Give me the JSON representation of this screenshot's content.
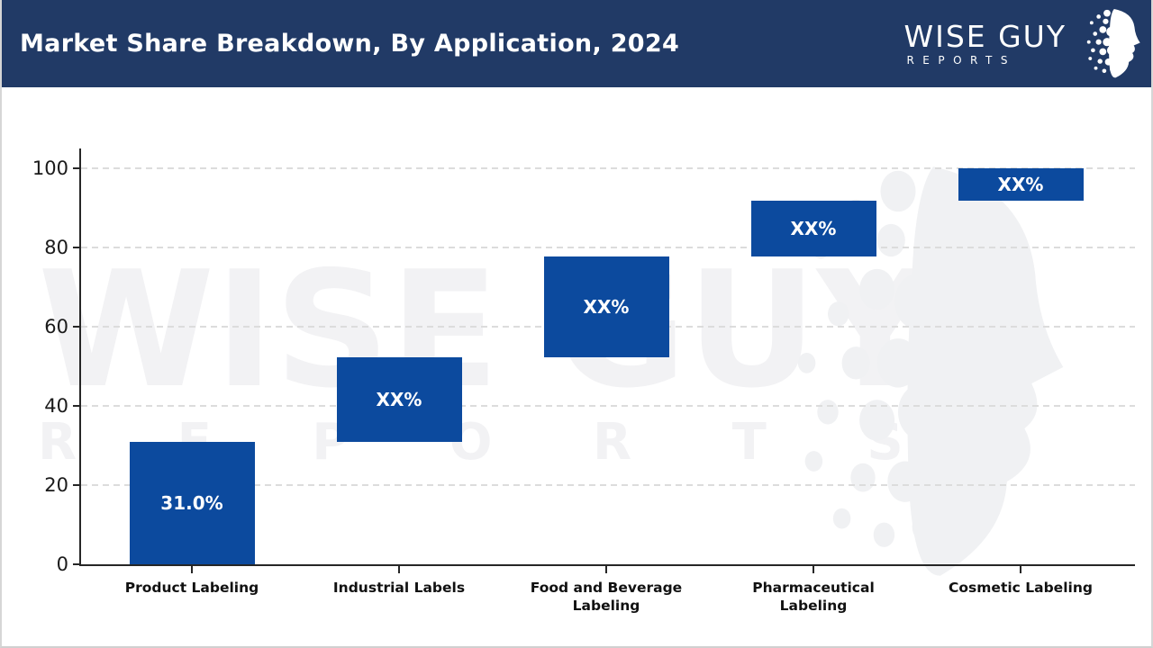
{
  "header": {
    "title": "Market Share Breakdown, By Application, 2024",
    "logo": {
      "title": "WISE GUY",
      "subtitle": "REPORTS"
    }
  },
  "watermark": {
    "title": "WISE GUY",
    "subtitle": "R E P O R T S"
  },
  "colors": {
    "header_bg": "#213a66",
    "bar": "#0c4a9e",
    "bar_label": "#ffffff",
    "grid": "#dcdcdc",
    "axis": "#262626",
    "tick_label": "#1a1a1a",
    "watermark": "#f2f2f4"
  },
  "chart_data": {
    "type": "bar",
    "subtype": "waterfall",
    "title": "Market Share Breakdown, By Application, 2024",
    "xlabel": "",
    "ylabel": "",
    "ylim": [
      0,
      105
    ],
    "yticks": [
      0,
      20,
      40,
      60,
      80,
      100
    ],
    "grid": "horizontal-dashed",
    "legend": "none",
    "categories": [
      "Product Labeling",
      "Industrial Labels",
      "Food and Beverage Labeling",
      "Pharmaceutical Labeling",
      "Cosmetic Labeling"
    ],
    "segments": [
      {
        "category": "Product Labeling",
        "start": 0.0,
        "end": 31.0,
        "label": "31.0%"
      },
      {
        "category": "Industrial Labels",
        "start": 31.0,
        "end": 52.3,
        "label": "XX%"
      },
      {
        "category": "Food and Beverage Labeling",
        "start": 52.3,
        "end": 77.7,
        "label": "XX%"
      },
      {
        "category": "Pharmaceutical Labeling",
        "start": 77.7,
        "end": 91.9,
        "label": "XX%"
      },
      {
        "category": "Cosmetic Labeling",
        "start": 91.9,
        "end": 100.0,
        "label": "XX%"
      }
    ]
  }
}
